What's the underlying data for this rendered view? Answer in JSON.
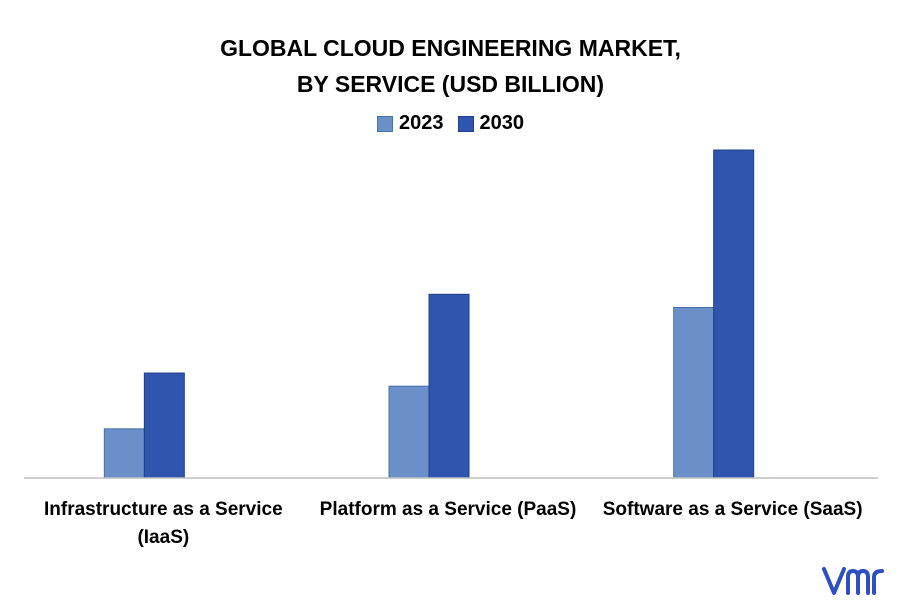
{
  "chart_data": {
    "type": "bar",
    "title": "GLOBAL CLOUD ENGINEERING MARKET,",
    "subtitle": "BY SERVICE (USD BILLION)",
    "categories": [
      [
        "Infrastructure as a Service",
        "(IaaS)"
      ],
      [
        "Platform as a Service (PaaS)"
      ],
      [
        "Software as a Service (SaaS)"
      ]
    ],
    "series": [
      {
        "name": "2023",
        "color": "#6A8FC9",
        "values": [
          15,
          28,
          52
        ]
      },
      {
        "name": "2030",
        "color": "#2F55AE",
        "values": [
          32,
          56,
          100
        ]
      }
    ],
    "ylim": [
      0,
      100
    ],
    "grid": false,
    "legend_position": "top-center"
  },
  "logo": {
    "text": "vmr",
    "color": "#2E4FC4"
  }
}
